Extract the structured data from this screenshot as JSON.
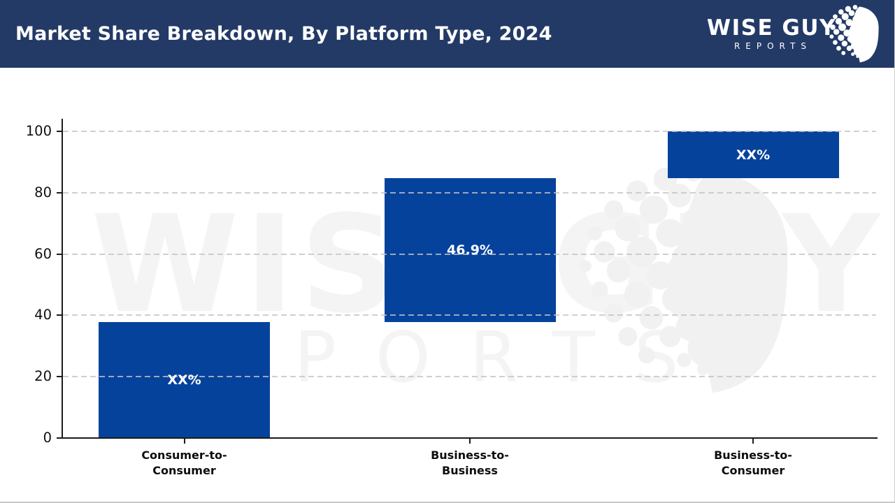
{
  "header": {
    "title": "Market Share Breakdown, By Platform Type, 2024",
    "logo": {
      "wordmark": "WISE GUY",
      "subtext": "REPORTS"
    }
  },
  "watermark": {
    "wordmark": "WISE GUY",
    "subtext": "REPORTS"
  },
  "colors": {
    "header_bg": "#233a66",
    "bar": "#05429c",
    "grid": "#c3c3c3",
    "axis": "#1b1b1b",
    "bar_label_text": "#ffffff",
    "tick_text": "#111111",
    "watermark": "#f4f4f4"
  },
  "chart_data": {
    "type": "bar",
    "title": "Market Share Breakdown, By Platform Type, 2024",
    "categories": [
      "Consumer-to-Consumer",
      "Business-to-Business",
      "Business-to-Consumer"
    ],
    "tick_label_lines": [
      [
        "Consumer-to-",
        "Consumer"
      ],
      [
        "Business-to-",
        "Business"
      ],
      [
        "Business-to-",
        "Consumer"
      ]
    ],
    "bars": [
      {
        "category": "Consumer-to-Consumer",
        "start": 0,
        "end": 37.8,
        "label": "XX%"
      },
      {
        "category": "Business-to-Business",
        "start": 37.8,
        "end": 84.7,
        "label": "46.9%"
      },
      {
        "category": "Business-to-Consumer",
        "start": 84.7,
        "end": 100,
        "label": "XX%"
      }
    ],
    "xlabel": "",
    "ylabel": "",
    "ylim": [
      0,
      100
    ],
    "yticks": [
      0,
      20,
      40,
      60,
      80,
      100
    ],
    "grid": "horizontal-dashed",
    "legend": "none"
  }
}
